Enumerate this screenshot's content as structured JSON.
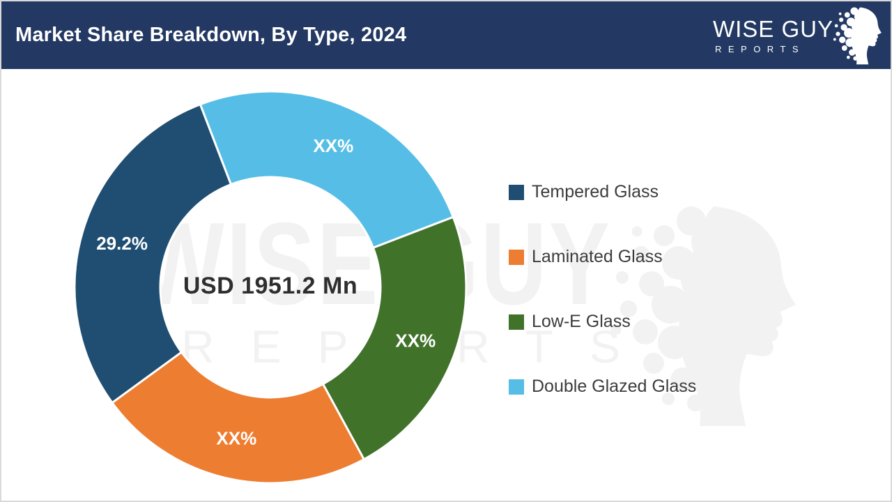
{
  "header": {
    "title": "Market Share Breakdown, By Type, 2024",
    "logo": {
      "line1": "WISE GUY",
      "line2": "REPORTS"
    }
  },
  "watermark": {
    "line1": "WISE GUY",
    "line2": "REPORTS"
  },
  "chart_data": {
    "type": "pie",
    "subtype": "donut",
    "title": "Market Share Breakdown, By Type, 2024",
    "center_label": "USD 1951.2 Mn",
    "units": "percent of market share",
    "start_angle_deg": -21,
    "direction": "clockwise",
    "legend_position": "right",
    "slices": [
      {
        "label": "Double Glazed Glass",
        "percent": 25.0,
        "display": "XX%",
        "color": "#56bee6"
      },
      {
        "label": "Low-E Glass",
        "percent": 22.9,
        "display": "XX%",
        "color": "#41722a"
      },
      {
        "label": "Laminated Glass",
        "percent": 22.9,
        "display": "XX%",
        "color": "#ed7d31"
      },
      {
        "label": "Tempered Glass",
        "percent": 29.2,
        "display": "29.2%",
        "color": "#1f4e72"
      }
    ],
    "legend_order": [
      3,
      2,
      1,
      0
    ]
  },
  "colors": {
    "header_bg": "#233963",
    "watermark": "#f2f2f2",
    "border": "#d9d9d9",
    "slice_divider": "#ffffff",
    "center_text": "#2e2e2e",
    "legend_text": "#3c3c3c"
  }
}
